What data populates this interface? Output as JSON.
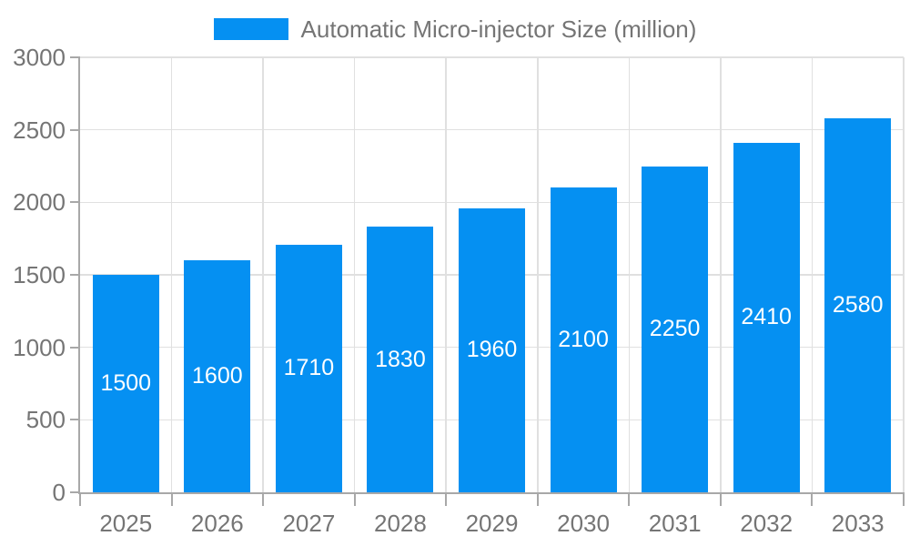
{
  "legend": {
    "label": "Automatic Micro-injector Size (million)",
    "swatch_color": "#0590F2"
  },
  "chart_data": {
    "type": "bar",
    "title": "Automatic Micro-injector Size (million)",
    "categories": [
      "2025",
      "2026",
      "2027",
      "2028",
      "2029",
      "2030",
      "2031",
      "2032",
      "2033"
    ],
    "series": [
      {
        "name": "Automatic Micro-injector Size (million)",
        "values": [
          1500,
          1600,
          1710,
          1830,
          1960,
          2100,
          2250,
          2410,
          2580
        ]
      }
    ],
    "xlabel": "",
    "ylabel": "",
    "ylim": [
      0,
      3000
    ],
    "yticks": [
      0,
      500,
      1000,
      1500,
      2000,
      2500,
      3000
    ],
    "grid": true,
    "legend_position": "top-center",
    "value_labels": "inside-center",
    "colors": {
      "bar": "#0590F2",
      "axis": "#A8A8A8",
      "grid": "#E0E0E0",
      "tick_text": "#757575",
      "value_text": "#FFFFFF",
      "background": "#FFFFFF"
    }
  }
}
